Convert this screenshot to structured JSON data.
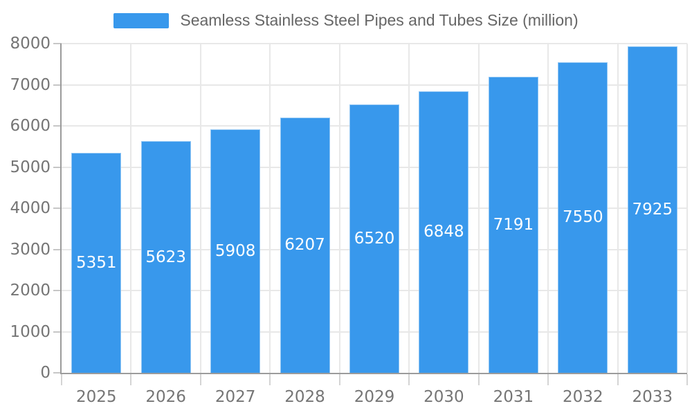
{
  "legend": {
    "label": "Seamless Stainless Steel Pipes and Tubes Size (million)"
  },
  "chart_data": {
    "type": "bar",
    "title": "Seamless Stainless Steel Pipes and Tubes Size (million)",
    "series_name": "Seamless Stainless Steel Pipes and Tubes Size (million)",
    "categories": [
      "2025",
      "2026",
      "2027",
      "2028",
      "2029",
      "2030",
      "2031",
      "2032",
      "2033"
    ],
    "values": [
      5351,
      5623,
      5908,
      6207,
      6520,
      6848,
      7191,
      7550,
      7925
    ],
    "bar_labels": [
      "5351",
      "5623",
      "5908",
      "6207",
      "6520",
      "6848",
      "7191",
      "7550",
      "7925"
    ],
    "xlabel": "",
    "ylabel": "",
    "ylim": [
      0,
      8000
    ],
    "y_ticks": [
      0,
      1000,
      2000,
      3000,
      4000,
      5000,
      6000,
      7000,
      8000
    ],
    "grid": true,
    "legend_position": "top-center",
    "colors": {
      "bar": "#3898EC",
      "bar_label": "#FFFFFF",
      "grid": "#E8E8E8",
      "axis_line": "#9B9B9B",
      "y_tick_mark": "#C6C6C6",
      "x_tick_mark": "#D4D4D4",
      "axis_text": "#757575",
      "legend_text": "#666666",
      "background": "#FFFFFF"
    }
  }
}
